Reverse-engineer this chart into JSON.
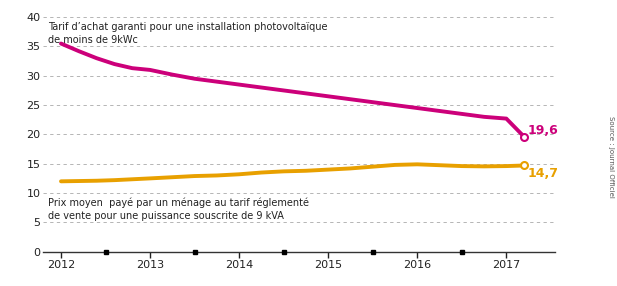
{
  "title_line1": "Tarif d’achat garanti pour une installation photovoltaïque",
  "title_line2": "de moins de 9kWc",
  "label2_line1": "Prix moyen  payé par un ménage au tarif réglementé",
  "label2_line2": "de vente pour une puissance souscrite de 9 kVA",
  "source_text": "Source : Journal Officiel",
  "pink_x": [
    2012.0,
    2012.2,
    2012.4,
    2012.6,
    2012.8,
    2013.0,
    2013.25,
    2013.5,
    2013.75,
    2014.0,
    2014.25,
    2014.5,
    2014.75,
    2015.0,
    2015.25,
    2015.5,
    2015.75,
    2016.0,
    2016.25,
    2016.5,
    2016.75,
    2017.0,
    2017.2
  ],
  "pink_y": [
    35.5,
    34.2,
    33.0,
    32.0,
    31.3,
    31.0,
    30.2,
    29.5,
    29.0,
    28.5,
    28.0,
    27.5,
    27.0,
    26.5,
    26.0,
    25.5,
    25.0,
    24.5,
    24.0,
    23.5,
    23.0,
    22.7,
    19.6
  ],
  "orange_x": [
    2012.0,
    2012.2,
    2012.4,
    2012.6,
    2012.8,
    2013.0,
    2013.25,
    2013.5,
    2013.75,
    2014.0,
    2014.25,
    2014.5,
    2014.75,
    2015.0,
    2015.25,
    2015.5,
    2015.75,
    2016.0,
    2016.25,
    2016.5,
    2016.75,
    2017.0,
    2017.2
  ],
  "orange_y": [
    12.0,
    12.05,
    12.1,
    12.2,
    12.35,
    12.5,
    12.7,
    12.9,
    13.0,
    13.2,
    13.5,
    13.7,
    13.8,
    14.0,
    14.2,
    14.5,
    14.8,
    14.9,
    14.75,
    14.6,
    14.55,
    14.6,
    14.7
  ],
  "pink_color": "#CC007A",
  "orange_color": "#E8A000",
  "pink_label_value": "19,6",
  "orange_label_value": "14,7",
  "ylim": [
    0,
    40
  ],
  "xlim": [
    2011.8,
    2017.55
  ],
  "yticks": [
    0,
    5,
    10,
    15,
    20,
    25,
    30,
    35,
    40
  ],
  "xticks": [
    2012,
    2013,
    2014,
    2015,
    2016,
    2017
  ],
  "grid_color": "#AAAAAA",
  "bg_color": "#FFFFFF",
  "line_width": 2.8
}
